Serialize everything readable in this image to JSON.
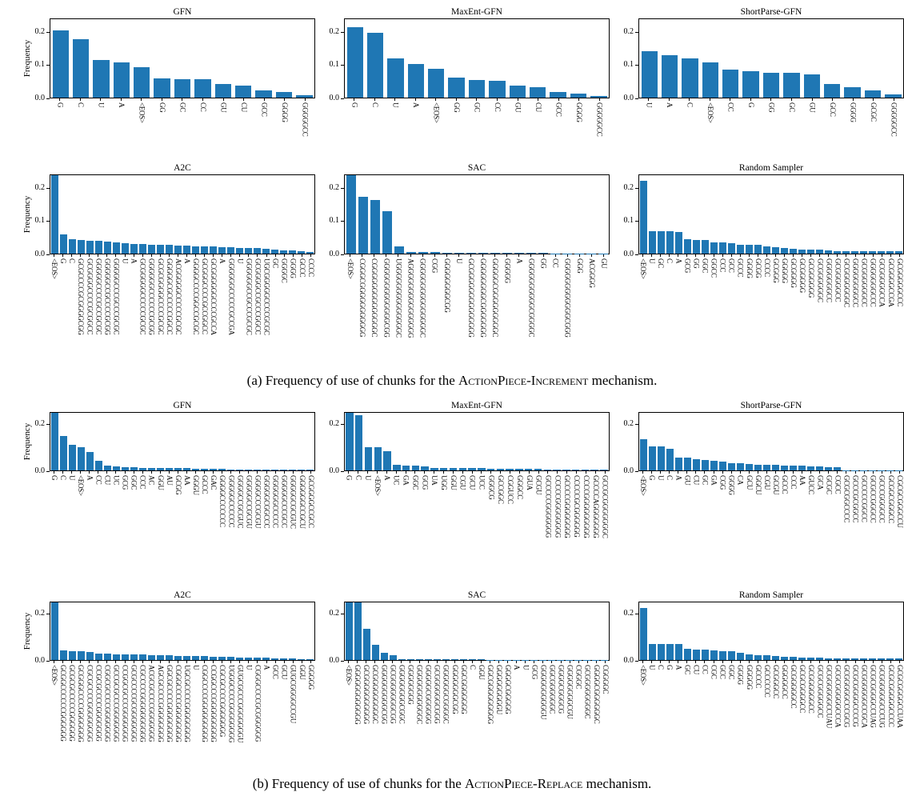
{
  "chart_data": {
    "type": "bar",
    "bar_color": "#1f77b4",
    "ylabel": "Frequency",
    "panels": [
      {
        "caption_prefix": "(a) Frequency of use of chunks for the ",
        "caption_smallcaps": "ActionPiece-Increment",
        "caption_suffix": " mechanism.",
        "rows": [
          {
            "yticks": [
              0.0,
              0.1,
              0.2
            ],
            "ylim": [
              0,
              0.24
            ],
            "charts": [
              {
                "title": "GFN",
                "categories": [
                  "G",
                  "C",
                  "U",
                  "A",
                  "<EOS>",
                  "GG",
                  "GC",
                  "CC",
                  "GU",
                  "CU",
                  "GCC",
                  "GGGG",
                  "GGGGGCC"
                ],
                "values": [
                  0.205,
                  0.18,
                  0.115,
                  0.107,
                  0.092,
                  0.058,
                  0.057,
                  0.056,
                  0.042,
                  0.037,
                  0.021,
                  0.016,
                  0.007
                ]
              },
              {
                "title": "MaxEnt-GFN",
                "categories": [
                  "G",
                  "C",
                  "U",
                  "A",
                  "<EOS>",
                  "GG",
                  "GC",
                  "CC",
                  "GU",
                  "CU",
                  "GCC",
                  "GGGG",
                  "GGGGGCC"
                ],
                "values": [
                  0.215,
                  0.198,
                  0.12,
                  0.104,
                  0.089,
                  0.061,
                  0.055,
                  0.051,
                  0.036,
                  0.031,
                  0.017,
                  0.012,
                  0.006
                ]
              },
              {
                "title": "ShortParse-GFN",
                "categories": [
                  "U",
                  "A",
                  "C",
                  "<EOS>",
                  "CC",
                  "G",
                  "GG",
                  "GC",
                  "GU",
                  "GCC",
                  "GGGG",
                  "GCGC",
                  "GGGGGCC"
                ],
                "values": [
                  0.143,
                  0.13,
                  0.12,
                  0.107,
                  0.086,
                  0.081,
                  0.077,
                  0.076,
                  0.07,
                  0.042,
                  0.031,
                  0.021,
                  0.01
                ]
              }
            ]
          },
          {
            "yticks": [
              0.0,
              0.1,
              0.2
            ],
            "ylim": [
              0,
              0.24
            ],
            "charts": [
              {
                "title": "A2C",
                "categories": [
                  "<EOS>",
                  "G",
                  "C",
                  "GCGCCCCGCGGGGCGG",
                  "GCGGGGCCCCGCGGCC",
                  "GGGGGCCCCGCCGCGC",
                  "GGGGGCCGCCCCGCGG",
                  "GGGGGCCCGCCCGCGC",
                  "U",
                  "A",
                  "GCGGGGGCCCCCGCGC",
                  "GGGGGGCCCCCCGCGG",
                  "GCGCGGGGCCCCGCGC",
                  "GGGGGCGCCCCCGGCC",
                  "ACGGGGGCCCCCGCGC",
                  "A",
                  "GGGGCCCCGGCCGCGC",
                  "GCGGGCCCCGCCGGCC",
                  "GCGGGGGGCCCCGCCA",
                  "A",
                  "GGGGGGCCCCCGCCGA",
                  "U",
                  "GGGGGGCCGCCCGCGC",
                  "GCGGGGCCGCCCGGCC",
                  "UGCGGGGGCCCCGCGC",
                  "GC",
                  "GGGGC",
                  "GGGG",
                  "GCCC",
                  "CCCC"
                ],
                "values": [
                  0.26,
                  0.06,
                  0.045,
                  0.042,
                  0.04,
                  0.038,
                  0.036,
                  0.034,
                  0.032,
                  0.03,
                  0.029,
                  0.028,
                  0.027,
                  0.026,
                  0.025,
                  0.024,
                  0.023,
                  0.022,
                  0.021,
                  0.02,
                  0.019,
                  0.018,
                  0.017,
                  0.016,
                  0.015,
                  0.013,
                  0.011,
                  0.009,
                  0.007,
                  0.005
                ]
              },
              {
                "title": "SAC",
                "categories": [
                  "<EOS>",
                  "CGGGCGGGGGGGGGGG",
                  "CGGGGGGGGGGGGGGC",
                  "GGGGGGGGGGGGGCGG",
                  "UGGGGGGGGGGGGGGC",
                  "AGGGGGGGGGGGGGGG",
                  "GGGGGGGGGGGGGGGC",
                  "CGG",
                  "GGGGGGGGCGG",
                  "U",
                  "GCGGGGGGGGGGGGGG",
                  "GGGGGGGGCGGGGGGG",
                  "GGGGGCGGGGGGGGGC",
                  "GGGGG",
                  "A",
                  "GGGGGGGGGGCGGGGC",
                  "GG",
                  "CC",
                  "GGGGGGGGGGGGCGGG",
                  "GGG",
                  "ACGGGG",
                  "GU"
                ],
                "values": [
                  0.26,
                  0.175,
                  0.165,
                  0.13,
                  0.022,
                  0.005,
                  0.004,
                  0.004,
                  0.003,
                  0.003,
                  0.003,
                  0.002,
                  0.002,
                  0.002,
                  0.002,
                  0.002,
                  0.002,
                  0.001,
                  0.001,
                  0.001,
                  0.001,
                  0.001
                ]
              },
              {
                "title": "Random Sampler",
                "categories": [
                  "<EOS>",
                  "U",
                  "GC",
                  "C",
                  "A",
                  "GCG",
                  "GG",
                  "GGC",
                  "GGCC",
                  "CCC",
                  "GCC",
                  "GCCC",
                  "GGGG",
                  "GCGG",
                  "CCCC",
                  "GCGGG",
                  "GGGGG",
                  "GCGGGG",
                  "GCGGGGG",
                  "GCGGGGGG",
                  "GCGGGGGGC",
                  "GGGGGGGCC",
                  "GCGGGGGCC",
                  "GCGGGGGGGC",
                  "GGGGGGGGCC",
                  "GCGGGGGGCC",
                  "GGGGGGGCCC",
                  "GCGGGGGCCA",
                  "GCGGGGCCGA",
                  "GCGGGGGCCC"
                ],
                "values": [
                  0.222,
                  0.068,
                  0.068,
                  0.068,
                  0.067,
                  0.043,
                  0.042,
                  0.041,
                  0.034,
                  0.034,
                  0.033,
                  0.028,
                  0.028,
                  0.027,
                  0.021,
                  0.019,
                  0.017,
                  0.015,
                  0.013,
                  0.013,
                  0.012,
                  0.009,
                  0.008,
                  0.008,
                  0.008,
                  0.007,
                  0.007,
                  0.007,
                  0.007,
                  0.007
                ]
              }
            ]
          }
        ]
      },
      {
        "caption_prefix": "(b) Frequency of use of chunks for the ",
        "caption_smallcaps": "ActionPiece-Replace",
        "caption_suffix": " mechanism.",
        "rows": [
          {
            "yticks": [
              0.0,
              0.2
            ],
            "ylim": [
              0,
              0.25
            ],
            "charts": [
              {
                "title": "GFN",
                "categories": [
                  "G",
                  "C",
                  "U",
                  "<EOS>",
                  "A",
                  "CC",
                  "CU",
                  "UC",
                  "GCG",
                  "GGC",
                  "CCC",
                  "AC",
                  "GGU",
                  "AU",
                  "GCGG",
                  "AA",
                  "GGGU",
                  "GCCC",
                  "GAC",
                  "GGGGCCCCCCC",
                  "GGGGGCCCCCC",
                  "GGGGCCGCGUC",
                  "GGGGGCCGCGU",
                  "GGGGCCCGCGU",
                  "GGGGGCGGCCC",
                  "GGGGGGCCCCC",
                  "GGGGGCCCGCC",
                  "GGGGGCGCGUC",
                  "GGGGGGCCGCU",
                  "GCGGGGCCGCC"
                ],
                "values": [
                  0.25,
                  0.15,
                  0.11,
                  0.1,
                  0.08,
                  0.04,
                  0.022,
                  0.018,
                  0.015,
                  0.013,
                  0.012,
                  0.011,
                  0.01,
                  0.01,
                  0.009,
                  0.009,
                  0.008,
                  0.008,
                  0.007,
                  0.006,
                  0.005,
                  0.004,
                  0.003,
                  0.003,
                  0.003,
                  0.002,
                  0.002,
                  0.002,
                  0.002,
                  0.002
                ]
              },
              {
                "title": "MaxEnt-GFN",
                "categories": [
                  "G",
                  "C",
                  "U",
                  "<EOS>",
                  "A",
                  "UC",
                  "GA",
                  "GGC",
                  "GCG",
                  "UA",
                  "UGG",
                  "GGU",
                  "CGU",
                  "GCU",
                  "UCC",
                  "GGGCG",
                  "GCCGGC",
                  "CGGUCC",
                  "GGGCC",
                  "GUA",
                  "GCGU",
                  "GCCCCCGGGGGGG",
                  "CCCCCGGGGGGGG",
                  "GCCCCGGGGGGGG",
                  "CCCCCGCGGGGGG",
                  "CCCCGGGGGGGGG",
                  "GCCCCAGGGGGGG",
                  "GCCGCGGGGGGGC"
                ],
                "values": [
                  0.255,
                  0.24,
                  0.1,
                  0.1,
                  0.085,
                  0.025,
                  0.02,
                  0.02,
                  0.018,
                  0.012,
                  0.011,
                  0.01,
                  0.01,
                  0.009,
                  0.009,
                  0.008,
                  0.008,
                  0.007,
                  0.007,
                  0.006,
                  0.006,
                  0.003,
                  0.002,
                  0.002,
                  0.002,
                  0.002,
                  0.002,
                  0.002
                ]
              },
              {
                "title": "ShortParse-GFN",
                "categories": [
                  "<EOS>",
                  "G",
                  "U",
                  "C",
                  "A",
                  "GU",
                  "CU",
                  "GC",
                  "GA",
                  "CGG",
                  "GGGG",
                  "CA",
                  "GCU",
                  "GGCU",
                  "CGU",
                  "GCGU",
                  "GCCC",
                  "CCC",
                  "AA",
                  "GUCC",
                  "GCA",
                  "GCGC",
                  "CGCC",
                  "GCGCGGCCCC",
                  "GCCCGCGGCC",
                  "GCCCCCGGCC",
                  "GCGCCGGGCC",
                  "GCCCGGGGCC",
                  "GCGGCGGGCC",
                  "CGCGCGGGCCU"
                ],
                "values": [
                  0.135,
                  0.105,
                  0.103,
                  0.095,
                  0.055,
                  0.054,
                  0.048,
                  0.045,
                  0.04,
                  0.038,
                  0.033,
                  0.03,
                  0.027,
                  0.026,
                  0.025,
                  0.024,
                  0.022,
                  0.021,
                  0.02,
                  0.018,
                  0.017,
                  0.015,
                  0.013,
                  0.001,
                  0.001,
                  0.001,
                  0.001,
                  0.001,
                  0.001,
                  0.001
                ]
              }
            ]
          },
          {
            "yticks": [
              0.0,
              0.2
            ],
            "ylim": [
              0,
              0.25
            ],
            "charts": [
              {
                "title": "A2C",
                "categories": [
                  "<EOS>",
                  "GCGGCCCCCCGGGGGG",
                  "GCGCGCCCCCGGGGGG",
                  "GCGGGCCCCGGGGGGG",
                  "CGCGCCCCGGGGGGGG",
                  "CCGCGCCCCGGGGGGG",
                  "CGGCGCCCCGGGGGGG",
                  "GCCGCGCCCGGGGGGG",
                  "CCGGCGCCCGGGGGGG",
                  "GCGCCCCGCGGGGGGG",
                  "CGCCCCGGGGGGGGGG",
                  "ACGCGCCCCGGGGGGG",
                  "AGCGCCCCGGGGGGGG",
                  "GGCGCCCCGGGGGGGG",
                  "CGGGCCCCGGGGGGGG",
                  "UGCGCCCCGGGGGGGG",
                  "U",
                  "CGGCCCCGGGGGGGGG",
                  "CCGGCCCGGGGGGGGG",
                  "CGCGCCCCGGGGGGG",
                  "UGGGCCCCGGGGGGGG",
                  "GUGCGCCCGGGGGGGU",
                  "U",
                  "CGGGCCCCGCGGGGGG",
                  "A",
                  "GCC",
                  "GCU",
                  "GUGCGGGGCCGU",
                  "GGU",
                  "GGGGG"
                ],
                "values": [
                  0.25,
                  0.04,
                  0.038,
                  0.037,
                  0.036,
                  0.028,
                  0.027,
                  0.026,
                  0.025,
                  0.024,
                  0.023,
                  0.022,
                  0.021,
                  0.02,
                  0.019,
                  0.018,
                  0.017,
                  0.016,
                  0.015,
                  0.014,
                  0.013,
                  0.012,
                  0.011,
                  0.01,
                  0.009,
                  0.008,
                  0.007,
                  0.006,
                  0.004,
                  0.002
                ]
              },
              {
                "title": "SAC",
                "categories": [
                  "<EOS>",
                  "GGGGGGGGGGGG",
                  "GCGGGGGGGGGG",
                  "GCGGGGGGGGGC",
                  "GGGGGGGGGCGG",
                  "GCGGGGGGGCGG",
                  "GGGGGGGGCGGC",
                  "GGGGGGGG",
                  "GGGGGGGGGGGC",
                  "GGGGGCGGGGGG",
                  "GCGGGGGGCGGG",
                  "GGGGGGCGGGGC",
                  "GGGGGGGCGG",
                  "GGCGGGGGGG",
                  "C",
                  "GGU",
                  "GGCGGGGGGGGG",
                  "GGGGGGGGGU",
                  "GGGGCGGGGG",
                  "A",
                  "U",
                  "GCG",
                  "GGGGGGGGGGU",
                  "GGCGGGGGGC",
                  "GGGGCGGGCG",
                  "GGGGGGGGCGU",
                  "CGGGC",
                  "GCGGGGGGGGC",
                  "GGGGCGGGGGGC",
                  "CGGGGC"
                ],
                "values": [
                  0.25,
                  0.25,
                  0.135,
                  0.065,
                  0.03,
                  0.022,
                  0.003,
                  0.002,
                  0.002,
                  0.002,
                  0.002,
                  0.002,
                  0.002,
                  0.002,
                  0.002,
                  0.002,
                  0.001,
                  0.001,
                  0.001,
                  0.001,
                  0.001,
                  0.001,
                  0.001,
                  0.001,
                  0.001,
                  0.001,
                  0.001,
                  0.001,
                  0.001,
                  0.001
                ]
              },
              {
                "title": "Random Sampler",
                "categories": [
                  "<EOS>",
                  "U",
                  "C",
                  "G",
                  "A",
                  "GC",
                  "CU",
                  "CC",
                  "CGC",
                  "GCC",
                  "GGC",
                  "GGGG",
                  "GGGGG",
                  "GCCCC",
                  "GCCCCCC",
                  "GCGGGCC",
                  "GGGGGCC",
                  "GCGGGGGCC",
                  "GCGCGGGGCC",
                  "GCGGGGGGCC",
                  "GCGCGGGGGCC",
                  "GCGGGGGGCCUAU",
                  "GCGCGGGGGCCCA",
                  "GCGGGGGCCCGCG",
                  "GCGCGGGGCCCCG",
                  "GCGGGGGGCCGCA",
                  "GCGCGGGGCCUAG",
                  "GCGGGGGGCCCUG",
                  "GCGCGGGGGCCCC",
                  "GCGCGGGGCCUAA"
                ],
                "values": [
                  0.225,
                  0.07,
                  0.07,
                  0.07,
                  0.07,
                  0.05,
                  0.046,
                  0.045,
                  0.04,
                  0.038,
                  0.037,
                  0.03,
                  0.025,
                  0.022,
                  0.02,
                  0.018,
                  0.015,
                  0.013,
                  0.012,
                  0.012,
                  0.01,
                  0.008,
                  0.008,
                  0.008,
                  0.008,
                  0.008,
                  0.008,
                  0.008,
                  0.008,
                  0.008
                ]
              }
            ]
          }
        ]
      }
    ]
  }
}
